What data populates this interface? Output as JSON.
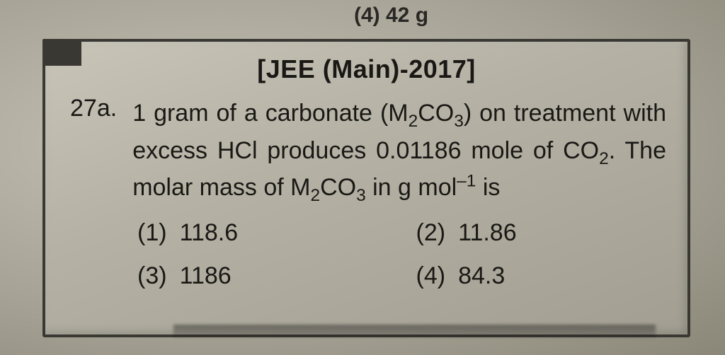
{
  "fragment": "(4)  42 g",
  "header": "[JEE (Main)-2017]",
  "question": {
    "number": "27a.",
    "line1_pre": "1 gram of a carbonate (M",
    "line1_sub1": "2",
    "line1_mid1": "CO",
    "line1_sub2": "3",
    "line1_post": ") on treatment",
    "line2": "with excess HCl produces 0.01186 mole of",
    "line3_pre": "CO",
    "line3_sub1": "2",
    "line3_mid": ". The molar mass of M",
    "line3_sub2": "2",
    "line3_mid2": "CO",
    "line3_sub3": "3",
    "line3_post": " in g mol",
    "line3_sup": "–1",
    "line3_end": " is"
  },
  "options": [
    {
      "num": "(1)",
      "val": "118.6"
    },
    {
      "num": "(2)",
      "val": "11.86"
    },
    {
      "num": "(3)",
      "val": "1186"
    },
    {
      "num": "(4)",
      "val": "84.3"
    }
  ],
  "style": {
    "box_border_color": "#3a3832",
    "text_color": "#1a1815",
    "bg_gradient_start": "#c8c5b8",
    "bg_gradient_end": "#a29f92",
    "header_fontsize": 36,
    "body_fontsize": 34
  }
}
